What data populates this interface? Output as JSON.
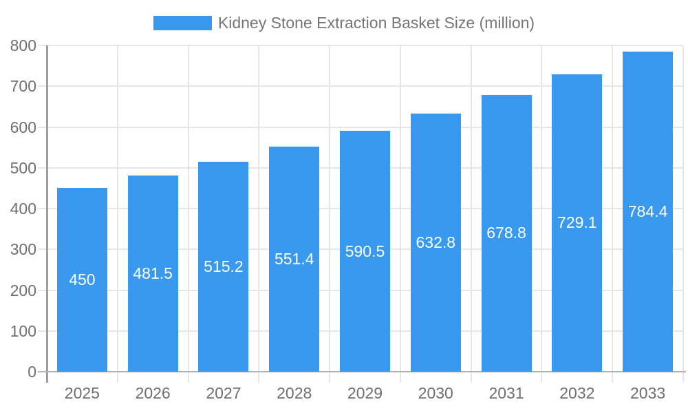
{
  "legend": {
    "series_label": "Kidney Stone Extraction Basket Size (million)",
    "swatch_color": "#3899ee"
  },
  "chart_data": {
    "type": "bar",
    "title": "Kidney Stone Extraction Basket Size (million)",
    "categories": [
      "2025",
      "2026",
      "2027",
      "2028",
      "2029",
      "2030",
      "2031",
      "2032",
      "2033"
    ],
    "values": [
      450,
      481.5,
      515.2,
      551.4,
      590.5,
      632.8,
      678.8,
      729.1,
      784.4
    ],
    "bar_labels": [
      "450",
      "481.5",
      "515.2",
      "551.4",
      "590.5",
      "632.8",
      "678.8",
      "729.1",
      "784.4"
    ],
    "xlabel": "",
    "ylabel": "",
    "ylim": [
      0,
      800
    ],
    "yticks": [
      0,
      100,
      200,
      300,
      400,
      500,
      600,
      700,
      800
    ],
    "grid": true,
    "legend_position": "top",
    "colors": {
      "bar": "#3899ee",
      "bar_label": "#ffffff",
      "gridline": "#e6e6e6",
      "axis_line": "#9e9e9e",
      "tick_text": "#6f6f6f",
      "legend_text": "#757575"
    }
  }
}
